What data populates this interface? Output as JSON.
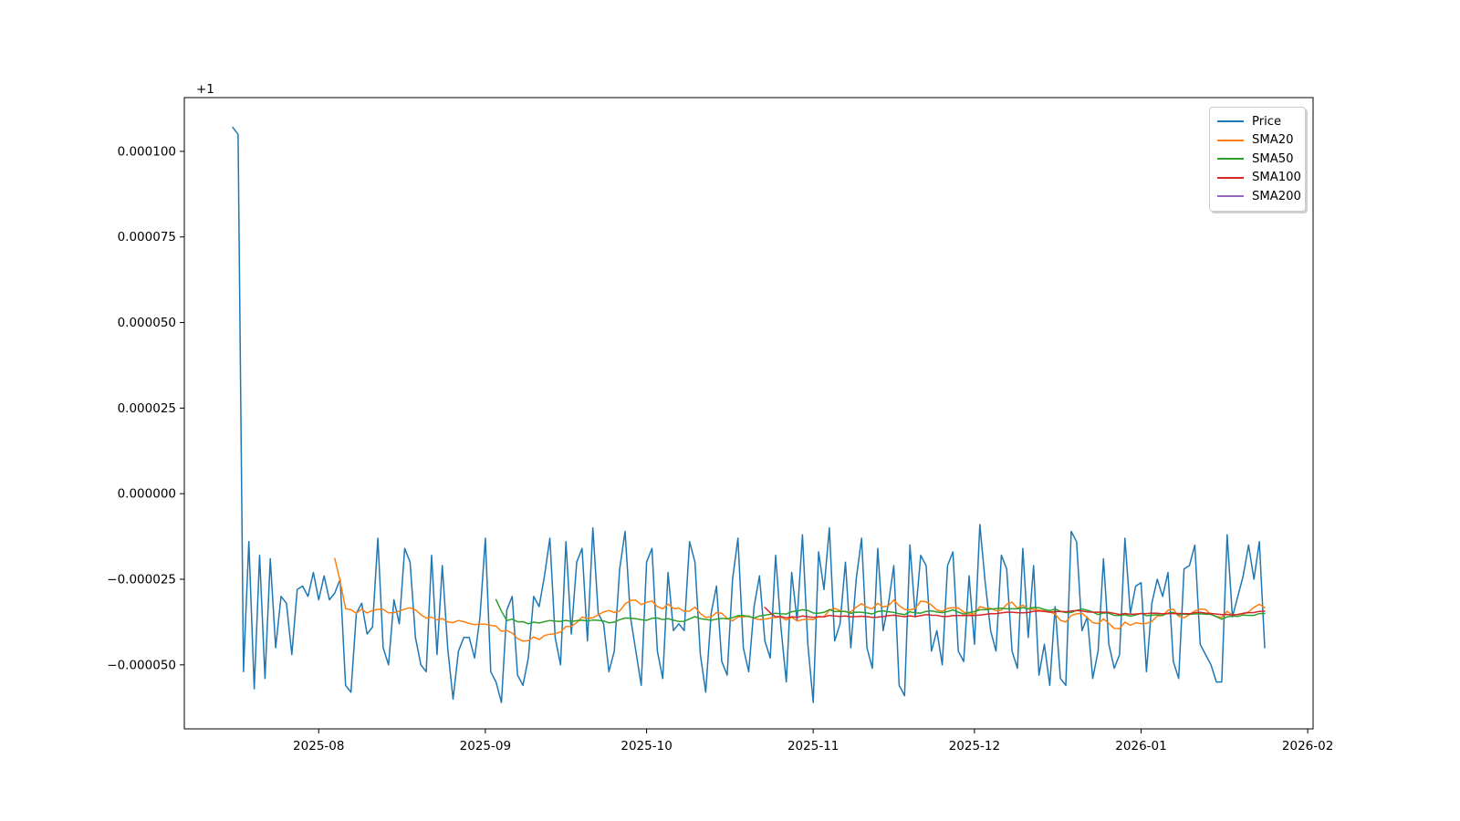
{
  "figure": {
    "background": "#ffffff"
  },
  "chart_data": {
    "type": "line",
    "title": "",
    "value_offset": 1.0,
    "value_scale": 1e-06,
    "x_axis": {
      "start": "2025-07-07",
      "end": "2026-02-02",
      "ticks": [
        {
          "date": "2025-08-01",
          "label": "2025-08"
        },
        {
          "date": "2025-09-01",
          "label": "2025-09"
        },
        {
          "date": "2025-10-01",
          "label": "2025-10"
        },
        {
          "date": "2025-11-01",
          "label": "2025-11"
        },
        {
          "date": "2025-12-01",
          "label": "2025-12"
        },
        {
          "date": "2026-01-01",
          "label": "2026-01"
        },
        {
          "date": "2026-02-01",
          "label": "2026-02"
        }
      ]
    },
    "y_axis": {
      "offset_label": "+1",
      "min_mu": -68.7,
      "max_mu": 115.7,
      "ticks": [
        {
          "mu": 100,
          "label": "0.000100"
        },
        {
          "mu": 75,
          "label": "0.000075"
        },
        {
          "mu": 50,
          "label": "0.000050"
        },
        {
          "mu": 25,
          "label": "0.000025"
        },
        {
          "mu": 0,
          "label": "0.000000"
        },
        {
          "mu": -25,
          "label": "−0.000025"
        },
        {
          "mu": -50,
          "label": "−0.000050"
        }
      ]
    },
    "price": {
      "name": "Price",
      "color": "#1f77b4",
      "start_date": "2025-07-16",
      "interval_days": 1,
      "values_mu": [
        107,
        105,
        -52,
        -14,
        -57,
        -18,
        -54,
        -19,
        -45,
        -30,
        -32,
        -47,
        -28,
        -27,
        -30,
        -23,
        -31,
        -24,
        -31,
        -29,
        -25,
        -56,
        -58,
        -35,
        -32,
        -41,
        -39,
        -13,
        -45,
        -50,
        -31,
        -38,
        -16,
        -20,
        -42,
        -50,
        -52,
        -18,
        -47,
        -21,
        -45,
        -60,
        -46,
        -42,
        -42,
        -48,
        -36,
        -13,
        -52,
        -55,
        -61,
        -34,
        -30,
        -53,
        -56,
        -48,
        -30,
        -33,
        -24,
        -13,
        -42,
        -50,
        -14,
        -41,
        -20,
        -16,
        -43,
        -10,
        -35,
        -38,
        -52,
        -46,
        -22,
        -11,
        -36,
        -46,
        -56,
        -20,
        -16,
        -46,
        -54,
        -23,
        -40,
        -38,
        -40,
        -14,
        -20,
        -47,
        -58,
        -35,
        -27,
        -49,
        -53,
        -25,
        -13,
        -45,
        -52,
        -33,
        -24,
        -43,
        -48,
        -18,
        -39,
        -55,
        -23,
        -37,
        -12,
        -44,
        -61,
        -17,
        -28,
        -10,
        -43,
        -38,
        -20,
        -45,
        -25,
        -13,
        -45,
        -51,
        -16,
        -40,
        -32,
        -21,
        -56,
        -59,
        -15,
        -36,
        -18,
        -21,
        -46,
        -40,
        -50,
        -21,
        -17,
        -46,
        -49,
        -24,
        -44,
        -9,
        -26,
        -40,
        -46,
        -18,
        -22,
        -46,
        -51,
        -16,
        -42,
        -21,
        -53,
        -44,
        -56,
        -33,
        -54,
        -56,
        -11,
        -14,
        -40,
        -36,
        -54,
        -46,
        -19,
        -44,
        -51,
        -47,
        -13,
        -35,
        -27,
        -26,
        -52,
        -32,
        -25,
        -30,
        -23,
        -49,
        -54,
        -22,
        -21,
        -15,
        -44,
        -47,
        -50,
        -55,
        -55,
        -12,
        -36,
        -30,
        -24,
        -15,
        -25,
        -14,
        -45
      ]
    },
    "sma_series": [
      {
        "name": "SMA20",
        "window": 20,
        "color": "#ff7f0e"
      },
      {
        "name": "SMA50",
        "window": 50,
        "color": "#2ca02c"
      },
      {
        "name": "SMA100",
        "window": 100,
        "color": "#d62728"
      },
      {
        "name": "SMA200",
        "window": 200,
        "color": "#9467bd"
      }
    ],
    "legend": {
      "position": "upper right",
      "labels": [
        "Price",
        "SMA20",
        "SMA50",
        "SMA100",
        "SMA200"
      ]
    }
  }
}
